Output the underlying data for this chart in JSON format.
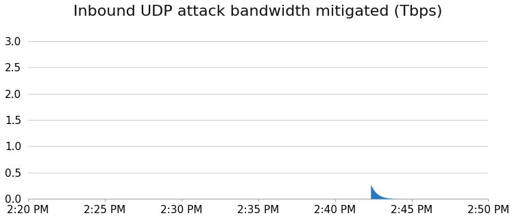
{
  "title": "Inbound UDP attack bandwidth mitigated (Tbps)",
  "fill_color": "#2878BE",
  "background_color": "#ffffff",
  "yticks": [
    0,
    0.5,
    1,
    1.5,
    2,
    2.5,
    3
  ],
  "ylim": [
    0,
    3.3
  ],
  "grid_color": "#d0d0d0",
  "title_fontsize": 16,
  "tick_fontsize": 11,
  "x_tick_labels": [
    "2:20 PM",
    "2:25 PM",
    "2:30 PM",
    "2:35 PM",
    "2:40 PM",
    "2:45 PM",
    "2:50 PM"
  ],
  "x_tick_positions": [
    0,
    5,
    10,
    15,
    20,
    25,
    30
  ],
  "xlim": [
    0,
    30
  ]
}
